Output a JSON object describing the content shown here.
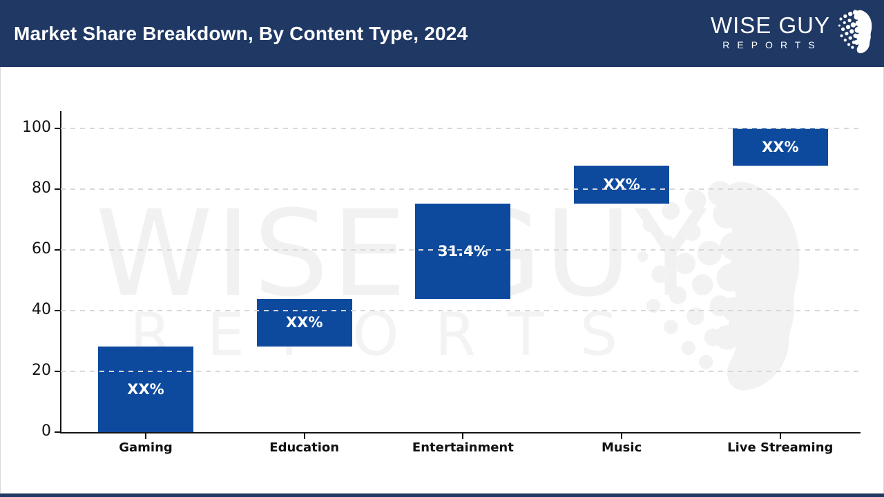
{
  "header": {
    "title": "Market Share Breakdown, By Content Type, 2024",
    "logo": {
      "line1": "WISE GUY",
      "line2": "REPORTS"
    }
  },
  "watermark": {
    "line1": "WISE GUY",
    "line2": "REPORTS"
  },
  "colors": {
    "header_bg": "#1f3864",
    "bar_blue": "#0d4a9e",
    "gridline": "#d8d8d8",
    "axis": "#141414",
    "watermark_gray": "#f1f1f1",
    "footer_bar": "#1f3864"
  },
  "chart_data": {
    "type": "bar",
    "subtype": "waterfall",
    "title": "Market Share Breakdown, By Content Type, 2024",
    "categories": [
      "Gaming",
      "Education",
      "Entertainment",
      "Music",
      "Live Streaming"
    ],
    "segments": [
      {
        "category": "Gaming",
        "start": 0,
        "end": 28.2,
        "value": 28.2,
        "label": "XX%"
      },
      {
        "category": "Education",
        "start": 28.2,
        "end": 43.9,
        "value": 15.7,
        "label": "XX%"
      },
      {
        "category": "Entertainment",
        "start": 43.9,
        "end": 75.3,
        "value": 31.4,
        "label": "31.4%"
      },
      {
        "category": "Music",
        "start": 75.3,
        "end": 87.8,
        "value": 12.5,
        "label": "XX%"
      },
      {
        "category": "Live Streaming",
        "start": 87.8,
        "end": 100,
        "value": 12.2,
        "label": "XX%"
      }
    ],
    "y_ticks": [
      0,
      20,
      40,
      60,
      80,
      100
    ],
    "ylim": [
      0,
      100
    ],
    "xlabel": "",
    "ylabel": "",
    "grid": "dashed horizontal, drawn over bars",
    "legend": "none",
    "bar_color": "#0d4a9e"
  }
}
